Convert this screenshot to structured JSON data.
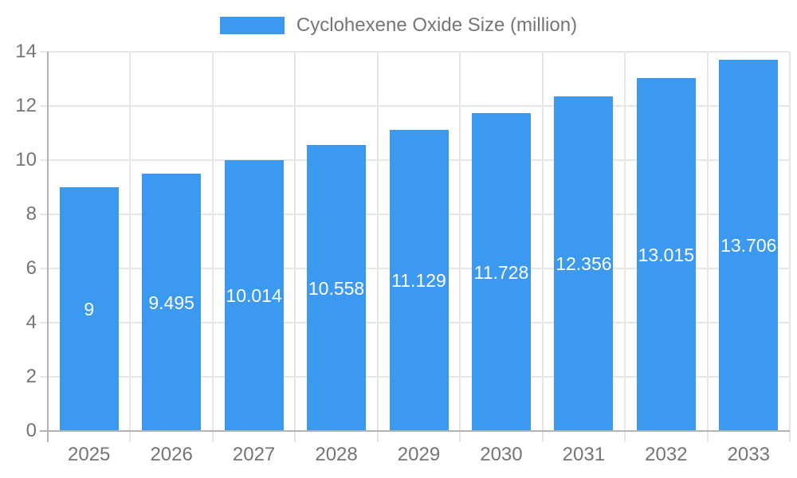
{
  "colors": {
    "bar": "#3b9aef",
    "grid": "#e6e6e6",
    "axis": "#b3b3b3",
    "text": "#757575",
    "bar_label": "#ffffff",
    "background": "#ffffff"
  },
  "chart_data": {
    "type": "bar",
    "title": "",
    "categories": [
      "2025",
      "2026",
      "2027",
      "2028",
      "2029",
      "2030",
      "2031",
      "2032",
      "2033"
    ],
    "series": [
      {
        "name": "Cyclohexene Oxide Size (million)",
        "values": [
          9,
          9.495,
          10.014,
          10.558,
          11.129,
          11.728,
          12.356,
          13.015,
          13.706
        ],
        "labels": [
          "9",
          "9.495",
          "10.014",
          "10.558",
          "11.129",
          "11.728",
          "12.356",
          "13.015",
          "13.706"
        ]
      }
    ],
    "xlabel": "",
    "ylabel": "",
    "ylim": [
      0,
      14
    ],
    "yticks": [
      0,
      2,
      4,
      6,
      8,
      10,
      12,
      14
    ],
    "ytick_labels": [
      "0",
      "2",
      "4",
      "6",
      "8",
      "10",
      "12",
      "14"
    ],
    "grid": true,
    "legend_position": "top-center"
  }
}
